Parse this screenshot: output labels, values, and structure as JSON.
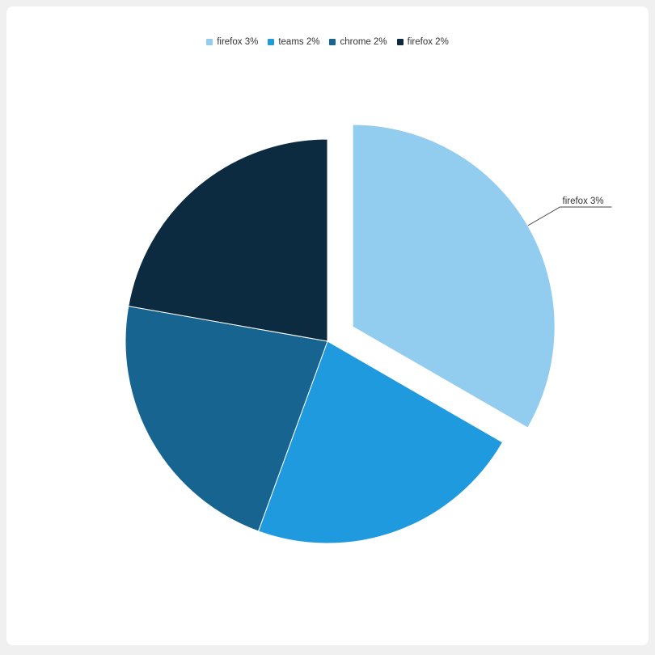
{
  "page": {
    "background_color": "#f0f0f0",
    "card_background_color": "#ffffff"
  },
  "chart_data": {
    "type": "pie",
    "title": "",
    "series": [
      {
        "name": "firefox 3%",
        "value": 3,
        "color": "#92CDF0",
        "exploded": true,
        "callout_label": "firefox 3%"
      },
      {
        "name": "teams 2%",
        "value": 2,
        "color": "#209ADE",
        "exploded": false
      },
      {
        "name": "chrome 2%",
        "value": 2,
        "color": "#16648F",
        "exploded": false
      },
      {
        "name": "firefox 2%",
        "value": 2,
        "color": "#0C2B40",
        "exploded": false
      }
    ],
    "start_angle_deg": 0,
    "direction": "clockwise",
    "legend_position": "top",
    "legend_entries": [
      "firefox 3%",
      "teams 2%",
      "chrome 2%",
      "firefox 2%"
    ],
    "label_text_color": "#333333",
    "connector_line_color": "#444444",
    "slice_border_color": "#ffffff"
  }
}
